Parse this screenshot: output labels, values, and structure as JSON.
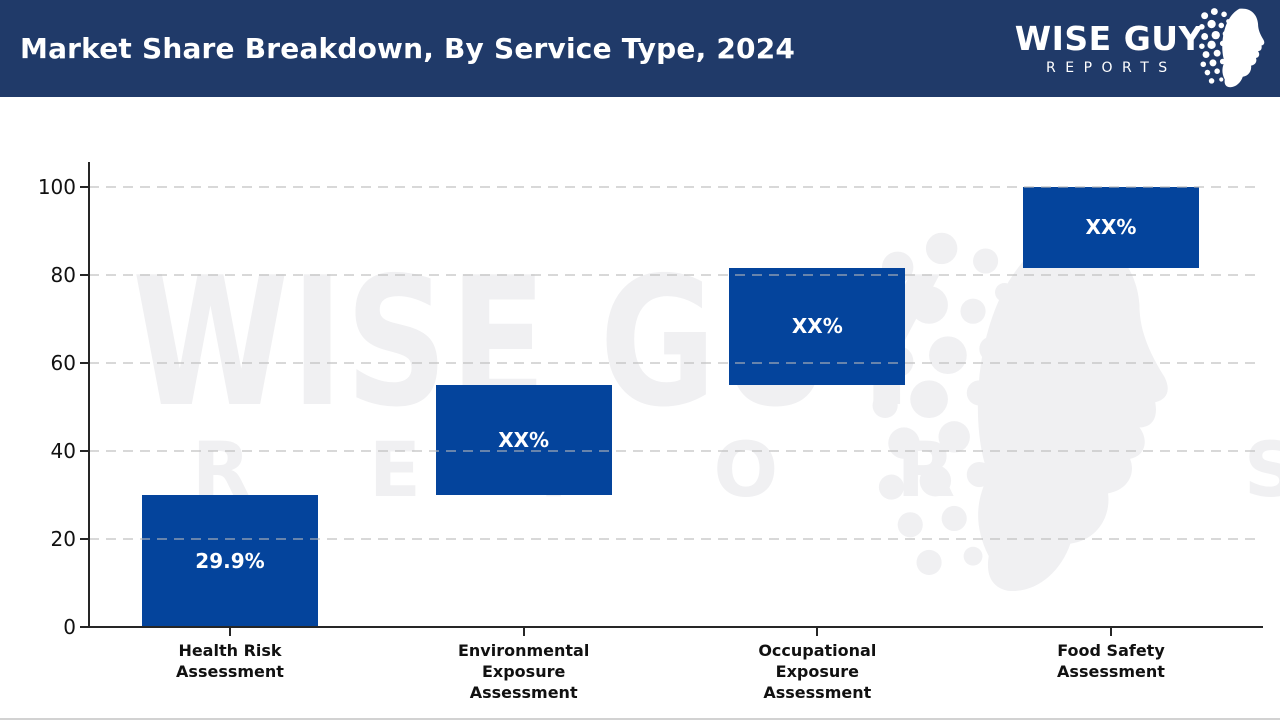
{
  "header": {
    "title": "Market Share Breakdown, By Service Type, 2024",
    "logo_primary": "WISE GUY",
    "logo_secondary": "REPORTS"
  },
  "watermark": {
    "primary": "WISE GUY",
    "secondary": "R E P O R T S"
  },
  "colors": {
    "header_bg": "#203a69",
    "bar": "#04449c",
    "bar_label": "#ffffff",
    "axis": "#262626",
    "grid": "#d7d7d7",
    "text": "#111111",
    "watermark": "#f0f0f2",
    "bottom_line": "#d2d2d2"
  },
  "chart_data": {
    "type": "bar",
    "subtype": "waterfall",
    "title": "Market Share Breakdown, By Service Type, 2024",
    "xlabel": "",
    "ylabel": "",
    "ylim": [
      0,
      100
    ],
    "yticks": [
      0,
      20,
      40,
      60,
      80,
      100
    ],
    "grid": "horizontal-dashed",
    "legend": "none",
    "categories": [
      {
        "lines": [
          "Health Risk",
          "Assessment"
        ]
      },
      {
        "lines": [
          "Environmental",
          "Exposure",
          "Assessment"
        ]
      },
      {
        "lines": [
          "Occupational",
          "Exposure",
          "Assessment"
        ]
      },
      {
        "lines": [
          "Food Safety",
          "Assessment"
        ]
      }
    ],
    "segments": [
      {
        "start": 0,
        "end": 29.9,
        "label": "29.9%"
      },
      {
        "start": 29.9,
        "end": 55.0,
        "label": "XX%"
      },
      {
        "start": 55.0,
        "end": 81.6,
        "label": "XX%"
      },
      {
        "start": 81.6,
        "end": 100.0,
        "label": "XX%"
      }
    ]
  }
}
